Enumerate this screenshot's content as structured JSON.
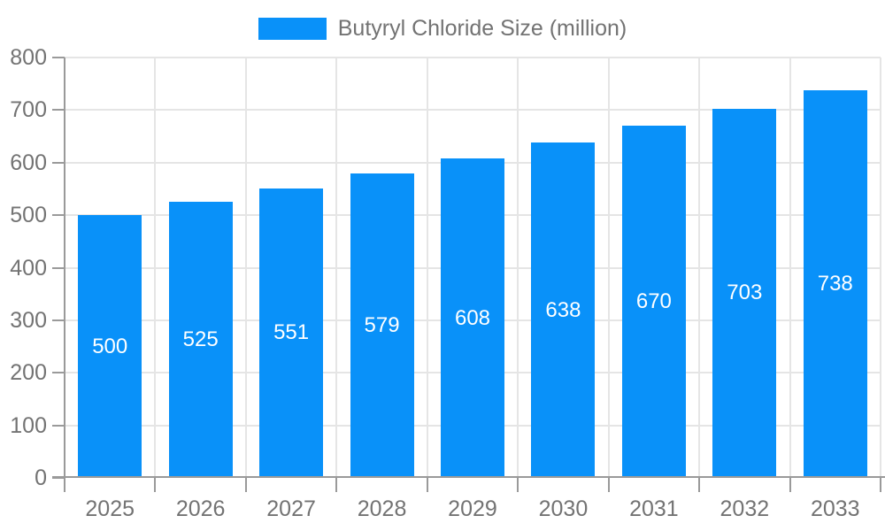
{
  "legend": {
    "label": "Butyryl Chloride Size (million)"
  },
  "chart_data": {
    "type": "bar",
    "title": "",
    "xlabel": "",
    "ylabel": "",
    "series_name": "Butyryl Chloride Size (million)",
    "categories": [
      "2025",
      "2026",
      "2027",
      "2028",
      "2029",
      "2030",
      "2031",
      "2032",
      "2033"
    ],
    "values": [
      500,
      525,
      551,
      579,
      608,
      638,
      670,
      703,
      738
    ],
    "ylim": [
      0,
      800
    ],
    "yticks": [
      0,
      100,
      200,
      300,
      400,
      500,
      600,
      700,
      800
    ],
    "grid": true,
    "legend_position": "top",
    "bar_labels_inside": true,
    "colors": {
      "bar": "#0991f9",
      "bar_label": "#ffffff",
      "axis": "#9a9a9a",
      "grid": "#e5e5e5",
      "text": "#737373"
    }
  }
}
